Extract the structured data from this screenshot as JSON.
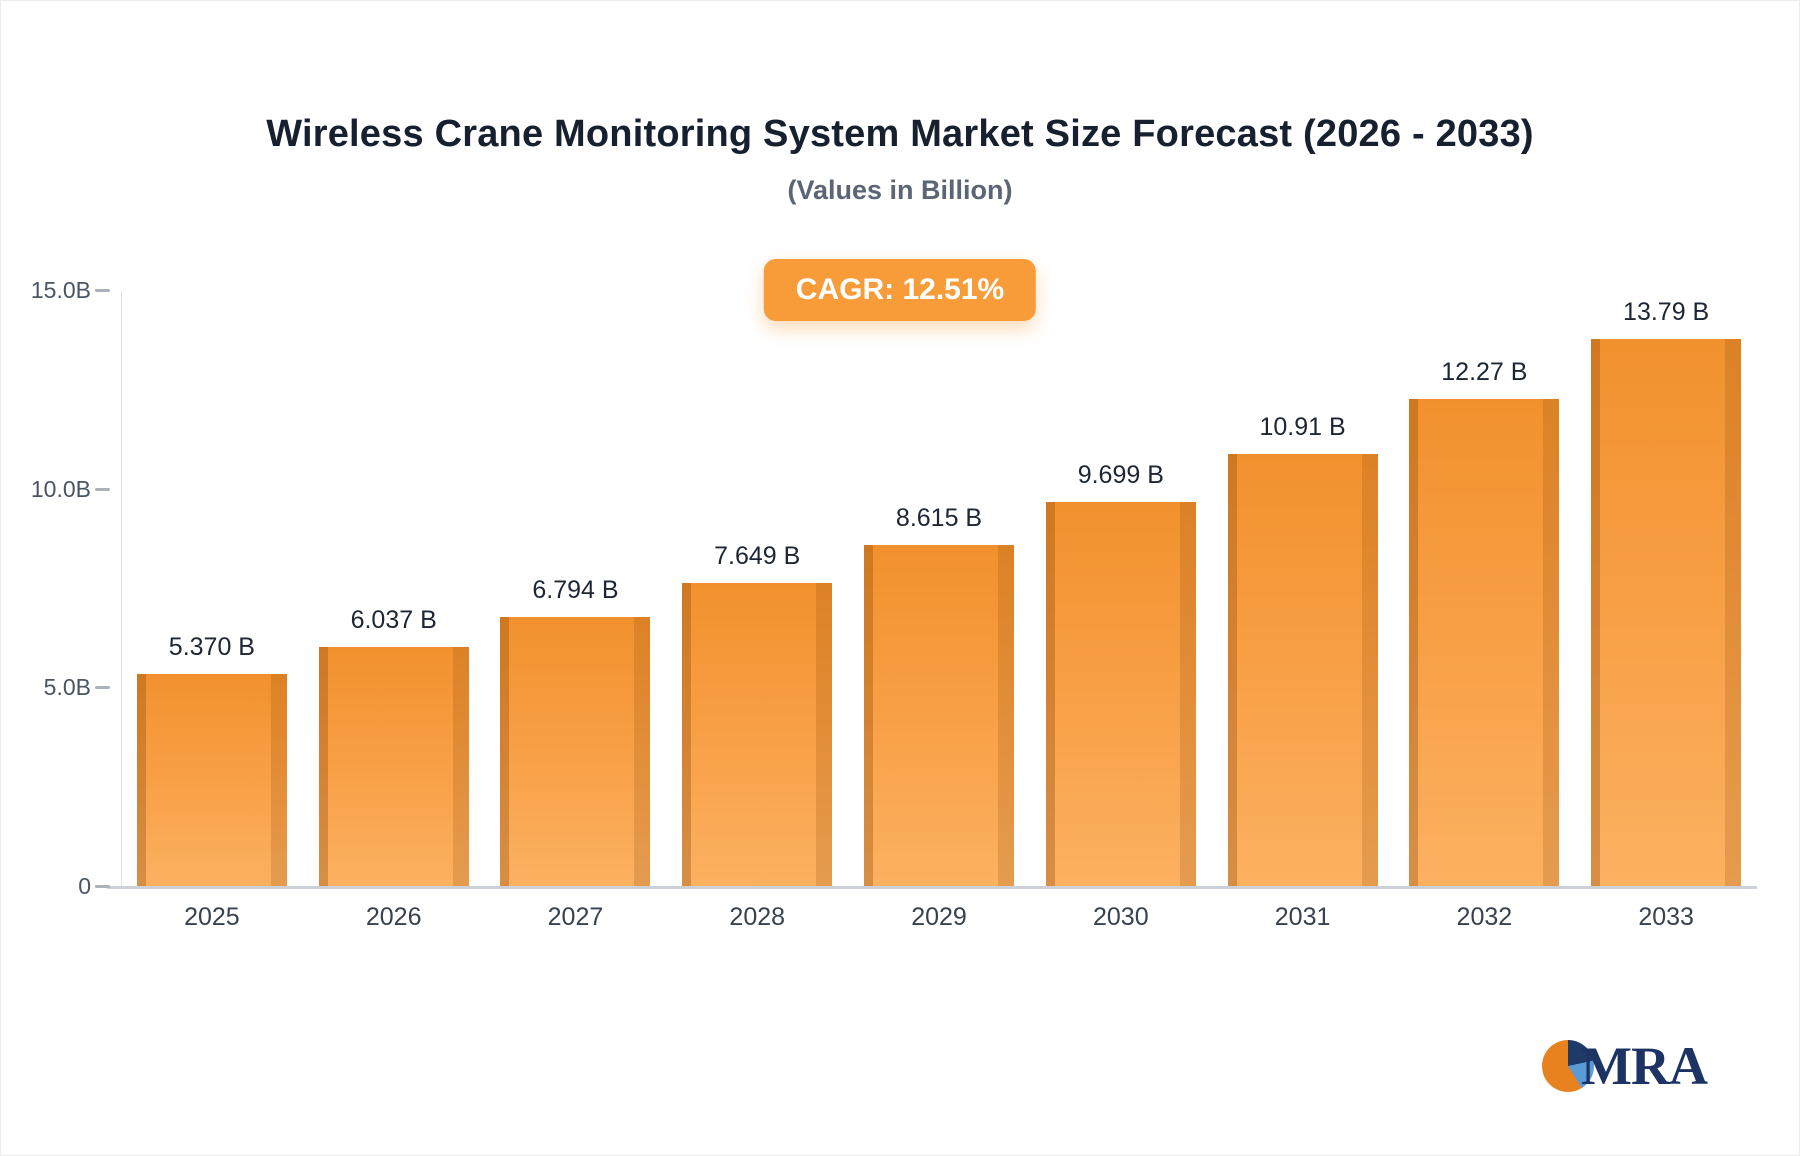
{
  "header": {
    "title": "Wireless Crane Monitoring System Market Size Forecast (2026 - 2033)",
    "subtitle": "(Values in Billion)"
  },
  "cagr_badge": {
    "label": "CAGR: 12.51%",
    "bg": "#f89c3a"
  },
  "chart_data": {
    "type": "bar",
    "title": "Wireless Crane Monitoring System Market Size Forecast (2026 - 2033)",
    "subtitle": "(Values in Billion)",
    "categories": [
      "2025",
      "2026",
      "2027",
      "2028",
      "2029",
      "2030",
      "2031",
      "2032",
      "2033"
    ],
    "values": [
      5.37,
      6.037,
      6.794,
      7.649,
      8.615,
      9.699,
      10.91,
      12.27,
      13.79
    ],
    "value_labels": [
      "5.370 B",
      "6.037 B",
      "6.794 B",
      "7.649 B",
      "8.615 B",
      "9.699 B",
      "10.91 B",
      "12.27 B",
      "13.79 B"
    ],
    "xlabel": "",
    "ylabel": "",
    "ylim": [
      0,
      15
    ],
    "yticks": [
      {
        "v": 0,
        "label": "0"
      },
      {
        "v": 5,
        "label": "5.0B"
      },
      {
        "v": 10,
        "label": "10.0B"
      },
      {
        "v": 15,
        "label": "15.0B"
      }
    ],
    "grid": false,
    "legend": "none",
    "colors": {
      "bar_face_top": "#f1912e",
      "bar_face_bottom": "#fcb161",
      "value_text": "#1d2633",
      "category_text": "#38424f",
      "tick_text": "#4a5562",
      "axis_line": "#dde1e7",
      "baseline": "#ccd1d8"
    }
  },
  "logo": {
    "text": "MRA",
    "colors": {
      "navy": "#1e3a68",
      "blue": "#5b9bd5",
      "orange": "#e8821e"
    }
  }
}
